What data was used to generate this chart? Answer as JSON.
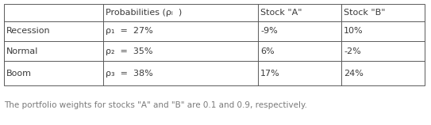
{
  "headers": [
    "",
    "Probabilities (ρᵢ  )",
    "Stock \"A\"",
    "Stock \"B\""
  ],
  "header_prob": "Probabilities (ρᵢ  )",
  "rows": [
    [
      "Recession",
      "ρ₁  =  27%",
      "-9%",
      "10%"
    ],
    [
      "Normal",
      "ρ₂  =  35%",
      "6%",
      "-2%"
    ],
    [
      "Boom",
      "ρ₃  =  38%",
      "17%",
      "24%"
    ]
  ],
  "footer": "The portfolio weights for stocks \"A\" and \"B\" are 0.1 and 0.9, respectively.",
  "bg_color": "#ffffff",
  "border_color": "#5a5a5a",
  "text_color": "#3a3a3a",
  "footer_color": "#7a7a7a",
  "font_family": "Arial Narrow",
  "header_fontsize": 8.0,
  "cell_fontsize": 8.0,
  "footer_fontsize": 7.5
}
